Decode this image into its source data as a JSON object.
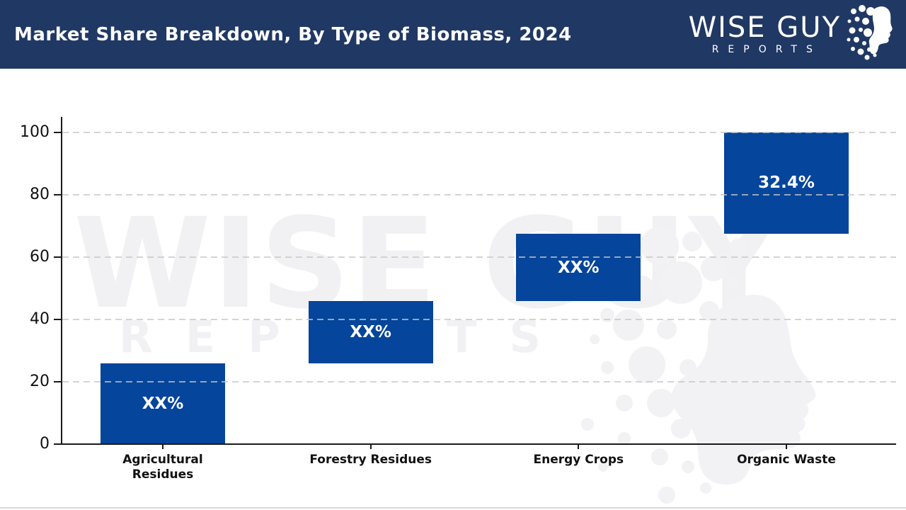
{
  "header": {
    "title": "Market Share Breakdown, By Type of Biomass, 2024",
    "logo": {
      "line1": "WISE GUY",
      "line2": "REPORTS"
    }
  },
  "watermark": {
    "line1": "WISE GUY",
    "line2": "REPORTS"
  },
  "chart_data": {
    "type": "bar",
    "subtype": "waterfall-floating-bars",
    "title": "Market Share Breakdown, By Type of Biomass, 2024",
    "categories": [
      "Agricultural Residues",
      "Forestry Residues",
      "Energy Crops",
      "Organic Waste"
    ],
    "segments": [
      {
        "category": "Agricultural Residues",
        "start": 0,
        "end": 25.9,
        "value": 25.9,
        "label": "XX%"
      },
      {
        "category": "Forestry Residues",
        "start": 25.9,
        "end": 45.8,
        "value": 19.9,
        "label": "XX%"
      },
      {
        "category": "Energy Crops",
        "start": 45.8,
        "end": 67.6,
        "value": 21.8,
        "label": "XX%"
      },
      {
        "category": "Organic Waste",
        "start": 67.6,
        "end": 100,
        "value": 32.4,
        "label": "32.4%"
      }
    ],
    "yticks": [
      0,
      20,
      40,
      60,
      80,
      100
    ],
    "ylim": [
      0,
      105
    ],
    "xlabel": "",
    "ylabel": "",
    "grid": "dashed-horizontal",
    "legend": "none",
    "bar_color": "#05459B",
    "bar_label_color": "#ffffff",
    "grid_color": "#c6c6c6",
    "axis_color": "#1a1a1a",
    "header_bg_color": "#203864",
    "watermark_color": "#f1f1f3"
  }
}
